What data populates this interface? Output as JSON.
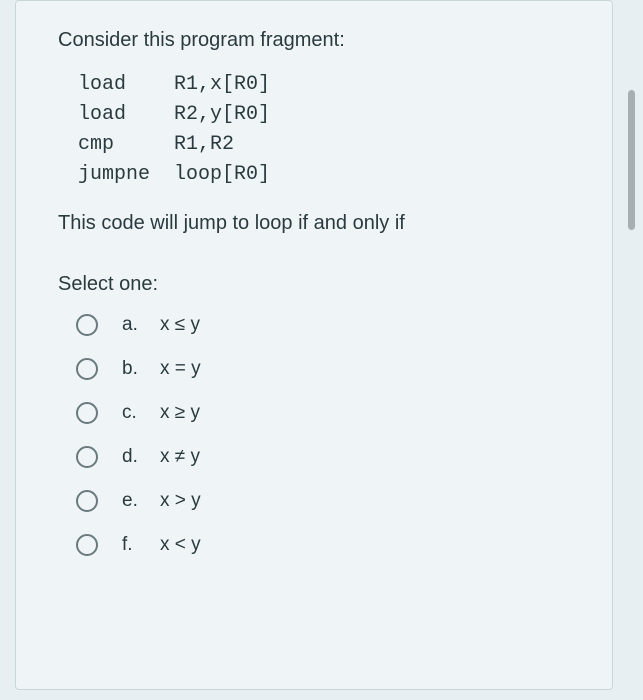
{
  "question": {
    "intro": "Consider this program fragment:",
    "code_lines": [
      "load    R1,x[R0]",
      "load    R2,y[R0]",
      "cmp     R1,R2",
      "jumpne  loop[R0]"
    ],
    "text": "This code will jump to loop if and only if",
    "select_label": "Select one:",
    "options": [
      {
        "letter": "a.",
        "text": "x ≤ y"
      },
      {
        "letter": "b.",
        "text": "x = y"
      },
      {
        "letter": "c.",
        "text": "x ≥ y"
      },
      {
        "letter": "d.",
        "text": "x ≠ y"
      },
      {
        "letter": "e.",
        "text": "x > y"
      },
      {
        "letter": "f.",
        "text": "x < y"
      }
    ]
  },
  "colors": {
    "page_bg": "#e8eff2",
    "panel_bg": "#eff5f6",
    "panel_border": "#c8d6da",
    "text": "#2a3a3f",
    "radio_border": "#6a7a7f",
    "scrollbar": "#a8afb2"
  }
}
